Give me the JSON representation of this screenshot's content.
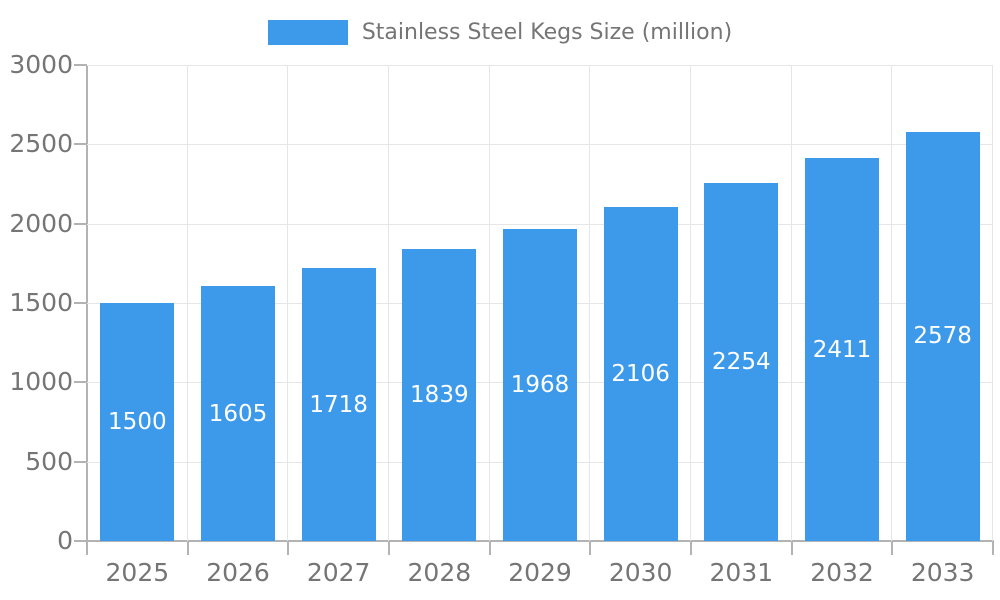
{
  "chart_data": {
    "type": "bar",
    "title": "Stainless Steel Kegs Size (million)",
    "categories": [
      "2025",
      "2026",
      "2027",
      "2028",
      "2029",
      "2030",
      "2031",
      "2032",
      "2033"
    ],
    "values": [
      1500,
      1605,
      1718,
      1839,
      1968,
      2106,
      2254,
      2411,
      2578
    ],
    "bar_labels": [
      "1500",
      "1605",
      "1718",
      "1839",
      "1968",
      "2106",
      "2254",
      "2411",
      "2578"
    ],
    "xlabel": "",
    "ylabel": "",
    "ylim": [
      0,
      3000
    ],
    "yticks": [
      0,
      500,
      1000,
      1500,
      2000,
      2500,
      3000
    ],
    "ytick_labels": [
      "0",
      "500",
      "1000",
      "1500",
      "2000",
      "2500",
      "3000"
    ],
    "grid": true,
    "legend_position": "top-center",
    "colors": {
      "bar": "#3d9aeb",
      "bar_label": "#ffffff",
      "axis": "#b3b3b3",
      "grid": "#e6e6e6",
      "text": "#757575",
      "background": "#ffffff"
    }
  }
}
